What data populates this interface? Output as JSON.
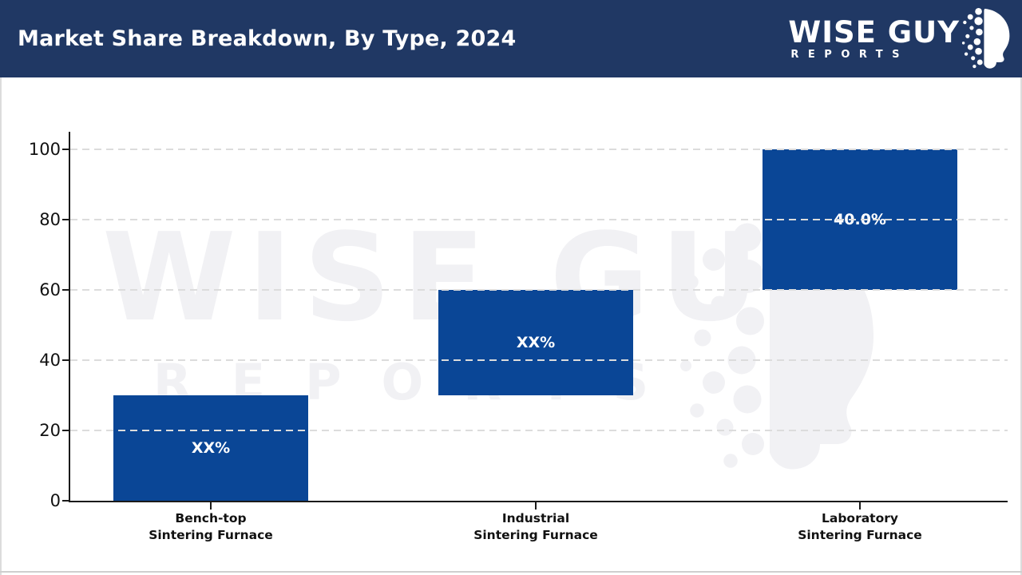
{
  "header": {
    "title": "Market Share Breakdown, By Type, 2024",
    "logo": {
      "name": "WISE GUY",
      "subtitle": "REPORTS"
    }
  },
  "watermark": {
    "name": "WISE GUY",
    "subtitle": "REPORTS"
  },
  "colors": {
    "header_bg": "#203864",
    "bar": "#0a4696",
    "bar_label_text": "#ffffff",
    "axis": "#1a1a1a",
    "grid": "#dcdcdc",
    "tick_text": "#111111",
    "category_text": "#111111",
    "watermark": "#f1f1f4",
    "page_border": "#dcdcdc"
  },
  "chart_data": {
    "type": "bar",
    "variant": "waterfall",
    "title": "Market Share Breakdown, By Type, 2024",
    "categories": [
      [
        "Bench-top",
        "Sintering Furnace"
      ],
      [
        "Industrial",
        "Sintering Furnace"
      ],
      [
        "Laboratory",
        "Sintering Furnace"
      ]
    ],
    "values": [
      30,
      30,
      40
    ],
    "cumulative_start": [
      0,
      30,
      60
    ],
    "cumulative_end": [
      30,
      60,
      100
    ],
    "bar_labels": [
      "XX%",
      "XX%",
      "40.0%"
    ],
    "ylim": [
      0,
      100
    ],
    "yticks": [
      0,
      20,
      40,
      60,
      80,
      100
    ],
    "xlabel": "",
    "ylabel": "",
    "grid": "horizontal-dashed",
    "legend": "none"
  }
}
